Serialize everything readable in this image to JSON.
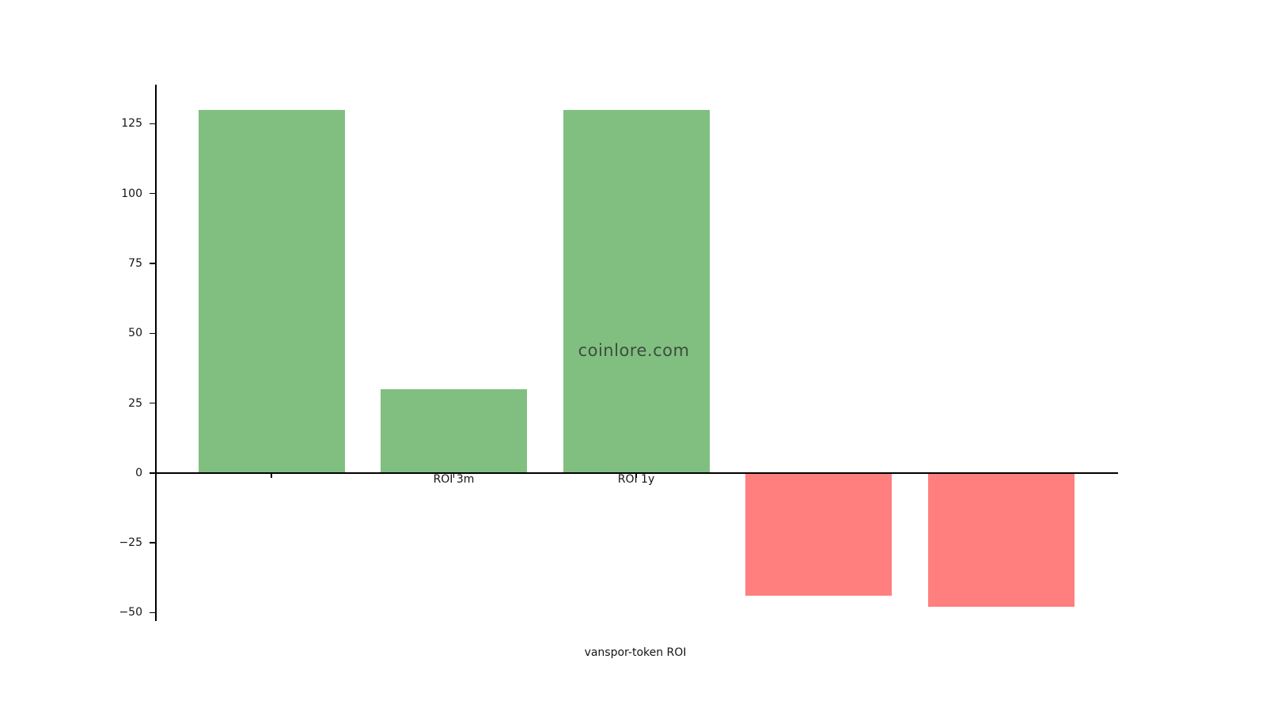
{
  "chart_data": {
    "type": "bar",
    "categories": [
      "",
      "ROI 3m",
      "ROI 1y",
      "",
      ""
    ],
    "values": [
      130,
      30,
      130,
      -44,
      -48
    ],
    "x_ticks_visible": [
      true,
      true,
      true,
      false,
      false
    ],
    "positive_color": "#80bf80",
    "negative_color": "#ff7f7f",
    "yticks": [
      125,
      100,
      75,
      50,
      25,
      0,
      -25,
      -50
    ],
    "ylim": [
      -53,
      139
    ],
    "title": "",
    "xlabel": "vanspor-token ROI",
    "ylabel": "",
    "watermark": "coinlore.com",
    "grid": false,
    "legend": "none",
    "axis_color": "#000000",
    "text_color": "#151515",
    "background_color": "#ffffff"
  }
}
